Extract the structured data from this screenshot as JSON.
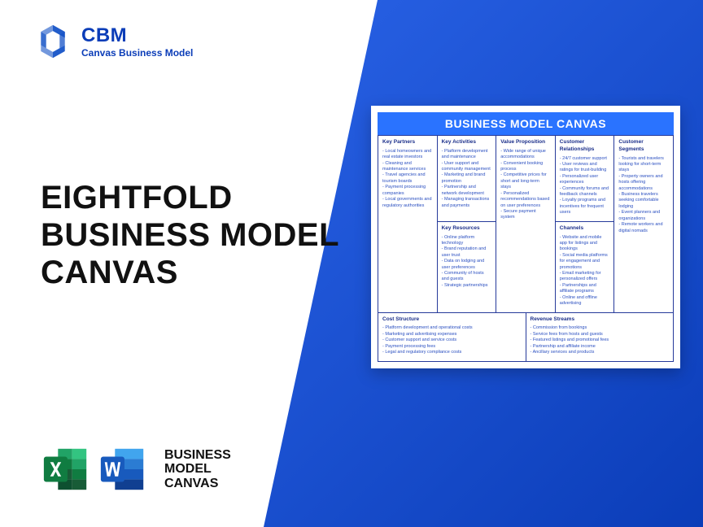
{
  "brand": {
    "short": "CBM",
    "sub": "Canvas Business Model",
    "logo_color": "#1553c7"
  },
  "title": "EIGHTFOLD\nBUSINESS MODEL\nCANVAS",
  "bottom_label": "BUSINESS\nMODEL\nCANVAS",
  "colors": {
    "accent": "#2a73ff",
    "gradient_from": "#2962e6",
    "gradient_to": "#0b3db8",
    "cell_border": "#263a9a",
    "cell_text": "#2a4fc0",
    "heading_text": "#1b2f8a",
    "excel_dark": "#107c41",
    "excel_light": "#21a366",
    "word_dark": "#103f91",
    "word_light": "#2b7cd3"
  },
  "canvas": {
    "title": "BUSINESS MODEL CANVAS",
    "blocks": {
      "kp": {
        "title": "Key Partners",
        "items": [
          "Local homeowners and real estate investors",
          "Cleaning and maintenance services",
          "Travel agencies and tourism boards",
          "Payment processing companies",
          "Local governments and regulatory authorities"
        ]
      },
      "ka": {
        "title": "Key Activities",
        "items": [
          "Platform development and maintenance",
          "User support and community management",
          "Marketing and brand promotion",
          "Partnership and network development",
          "Managing transactions and payments"
        ]
      },
      "kr": {
        "title": "Key Resources",
        "items": [
          "Online platform technology",
          "Brand reputation and user trust",
          "Data on lodging and user preferences",
          "Community of hosts and guests",
          "Strategic partnerships"
        ]
      },
      "vp": {
        "title": "Value Proposition",
        "items": [
          "Wide range of unique accommodations",
          "Convenient booking process",
          "Competitive prices for short and long-term stays",
          "Personalized recommendations based on user preferences",
          "Secure payment system"
        ]
      },
      "cr": {
        "title": "Customer Relationships",
        "items": [
          "24/7 customer support",
          "User reviews and ratings for trust-building",
          "Personalized user experiences",
          "Community forums and feedback channels",
          "Loyalty programs and incentives for frequent users"
        ]
      },
      "ch": {
        "title": "Channels",
        "items": [
          "Website and mobile app for listings and bookings",
          "Social media platforms for engagement and promotions",
          "Email marketing for personalized offers",
          "Partnerships and affiliate programs",
          "Online and offline advertising"
        ]
      },
      "cs": {
        "title": "Customer Segments",
        "items": [
          "Tourists and travelers looking for short-term stays",
          "Property owners and hosts offering accommodations",
          "Business travelers seeking comfortable lodging",
          "Event planners and organizations",
          "Remote workers and digital nomads"
        ]
      },
      "cost": {
        "title": "Cost Structure",
        "items": [
          "Platform development and operational costs",
          "Marketing and advertising expenses",
          "Customer support and service costs",
          "Payment processing fees",
          "Legal and regulatory compliance costs"
        ]
      },
      "rev": {
        "title": "Revenue Streams",
        "items": [
          "Commission from bookings",
          "Service fees from hosts and guests",
          "Featured listings and promotional fees",
          "Partnership and affiliate income",
          "Ancillary services and products"
        ]
      }
    }
  }
}
